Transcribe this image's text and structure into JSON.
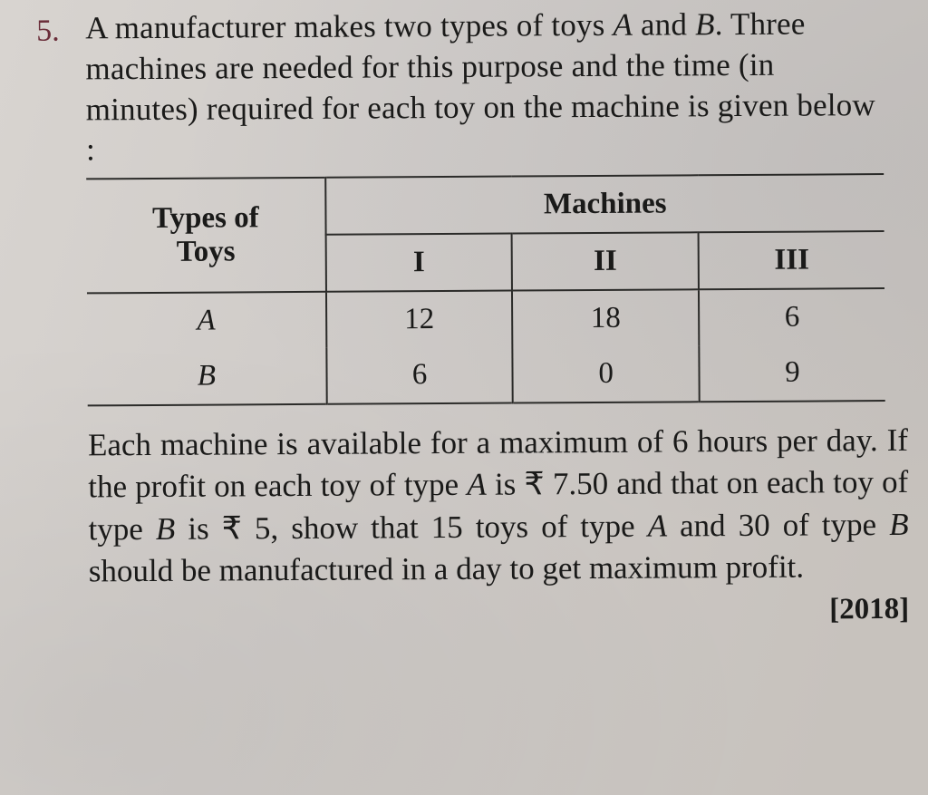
{
  "question_number": "5.",
  "intro_html": "A manufacturer makes two types of toys <span class=\"ital\">A</span> and <span class=\"ital\">B</span>. Three machines are needed for this purpose and the time (in minutes) required for each toy on the machine is given below :",
  "table": {
    "header_left": "Types of\nToys",
    "header_group": "Machines",
    "machine_cols": [
      "I",
      "II",
      "III"
    ],
    "rows": [
      {
        "label": "A",
        "vals": [
          "12",
          "18",
          "6"
        ]
      },
      {
        "label": "B",
        "vals": [
          "6",
          "0",
          "9"
        ]
      }
    ]
  },
  "body_html": "Each machine is available for a maximum of 6 hours per day. If the profit on each toy of type <span class=\"ital\">A</span> is <span class=\"rupee\">₹</span> 7.50 and that on each toy of type <span class=\"ital\">B</span> is <span class=\"rupee\">₹</span> 5, show that 15 toys of type <span class=\"ital\">A</span> and 30 of type <span class=\"ital\">B</span> should be manufactured in a day to get maximum profit.",
  "year": "[2018]",
  "colors": {
    "text": "#1a1a19",
    "qnum": "#6b2e3a",
    "rule": "#2b2b29",
    "bg_light": "#d8d4d0",
    "bg_dark": "#c7c2bd"
  },
  "fontsizes_pt": {
    "question": 26,
    "table": 25,
    "year": 25
  }
}
